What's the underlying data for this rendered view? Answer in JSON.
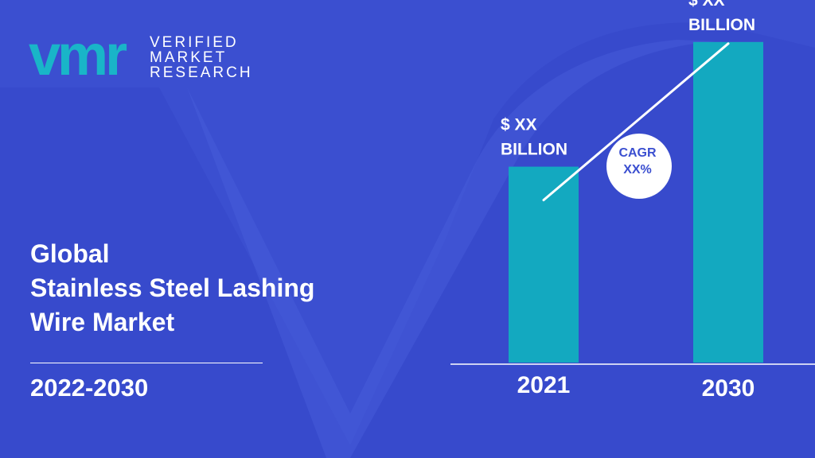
{
  "logo": {
    "mark": "vmr",
    "line1": "VERIFIED",
    "line2": "MARKET",
    "line3": "RESEARCH"
  },
  "title": {
    "line1": "Global",
    "line2": "Stainless Steel Lashing",
    "line3": "Wire Market"
  },
  "period": "2022-2030",
  "cagr": {
    "line1": "CAGR",
    "line2": "XX%"
  },
  "colors": {
    "background": "#3b4fd0",
    "bar": "#13a9c0",
    "logo_accent": "#19b5c8",
    "text": "#ffffff",
    "cagr_text": "#3b4fd0"
  },
  "chart_data": {
    "type": "bar",
    "categories": [
      "2021",
      "2030"
    ],
    "values": [
      0.44,
      0.72
    ],
    "value_scale": "relative (values shown only as placeholders)",
    "data_labels": [
      {
        "line1": "$ XX",
        "line2": "BILLION"
      },
      {
        "line1": "$ XX",
        "line2": "BILLION"
      }
    ],
    "title": "",
    "xlabel": "",
    "ylabel": "",
    "grid": false,
    "legend": "none"
  }
}
